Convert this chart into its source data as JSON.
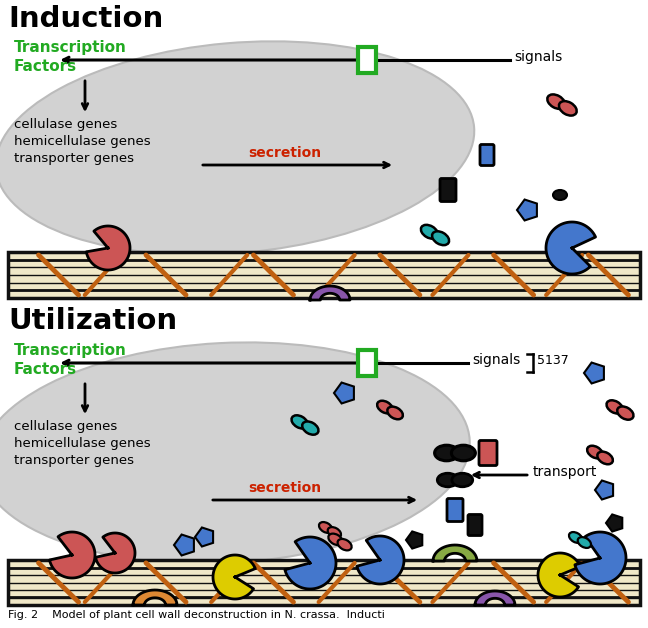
{
  "title_induction": "Induction",
  "title_utilization": "Utilization",
  "tf_label": "Transcription\nFactors",
  "tf_color": "#22aa22",
  "genes_label": "cellulase genes\nhemicellulase genes\ntransporter genes",
  "secretion_label": "secretion",
  "secretion_color": "#cc2200",
  "signals_label": "signals",
  "transport_label": "transport",
  "number_label": "5137",
  "background_color": "#ffffff",
  "cell_wall_color": "#111111",
  "cell_wall_fill": "#f0e8c8",
  "fiber_color": "#c06010",
  "gray_blob_color": "#d0d0d0",
  "pink_enzyme_color": "#cc5555",
  "blue_enzyme_color": "#4477cc",
  "teal_enzyme_color": "#22aaaa",
  "black_enzyme_color": "#111111",
  "purple_enzyme_color": "#8855aa",
  "red_pac_color": "#cc4444",
  "orange_pac_color": "#dd8833",
  "yellow_pac_color": "#ddcc00",
  "green_pac_color": "#88aa44",
  "blue_pac_color": "#4466bb",
  "caption": "Fig. 2    Model of plant cell wall deconstruction in N. crassa.  Inducti"
}
